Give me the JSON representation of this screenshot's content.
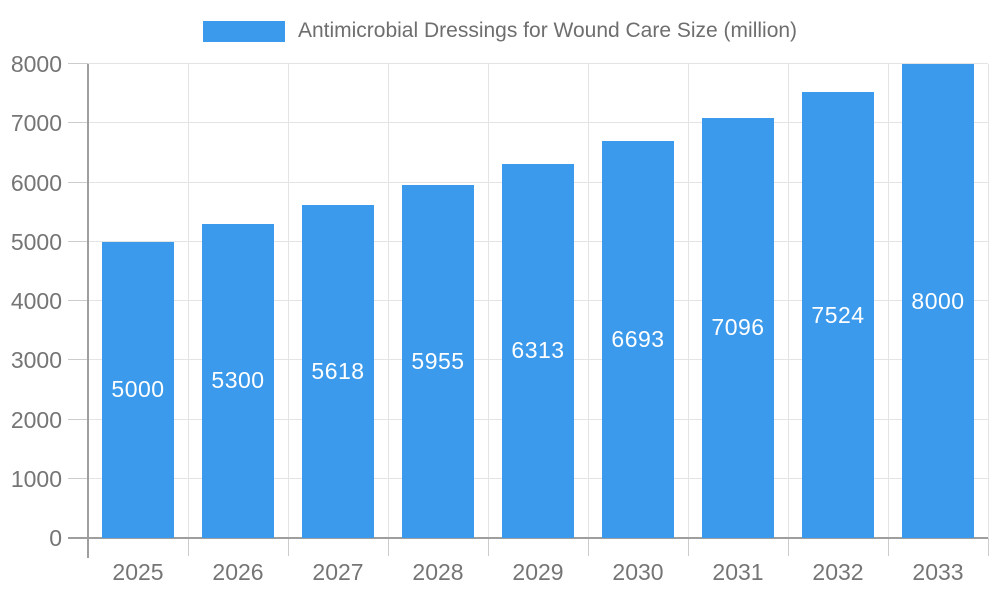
{
  "legend": {
    "label": "Antimicrobial Dressings for Wound Care Size (million)"
  },
  "chart_data": {
    "type": "bar",
    "title": "Antimicrobial Dressings for Wound Care Size (million)",
    "categories": [
      "2025",
      "2026",
      "2027",
      "2028",
      "2029",
      "2030",
      "2031",
      "2032",
      "2033"
    ],
    "values": [
      5000,
      5300,
      5618,
      5955,
      6313,
      6693,
      7096,
      7524,
      8000
    ],
    "bar_value_labels": [
      "5000",
      "5300",
      "5618",
      "5955",
      "6313",
      "6693",
      "7096",
      "7524",
      "8000"
    ],
    "xlabel": "",
    "ylabel": "",
    "ylim": [
      0,
      8000
    ],
    "yticks": [
      0,
      1000,
      2000,
      3000,
      4000,
      5000,
      6000,
      7000,
      8000
    ],
    "grid": "both",
    "legend_position": "top-center",
    "colors": {
      "bar": "#3C9AEC",
      "axis": "#9E9E9E",
      "gridline": "#E4E4E4",
      "tick": "#CCCCCC",
      "axis_label_text": "#757575",
      "bar_label_text": "#FFFFFF",
      "legend_text": "#6E6E6E"
    }
  }
}
